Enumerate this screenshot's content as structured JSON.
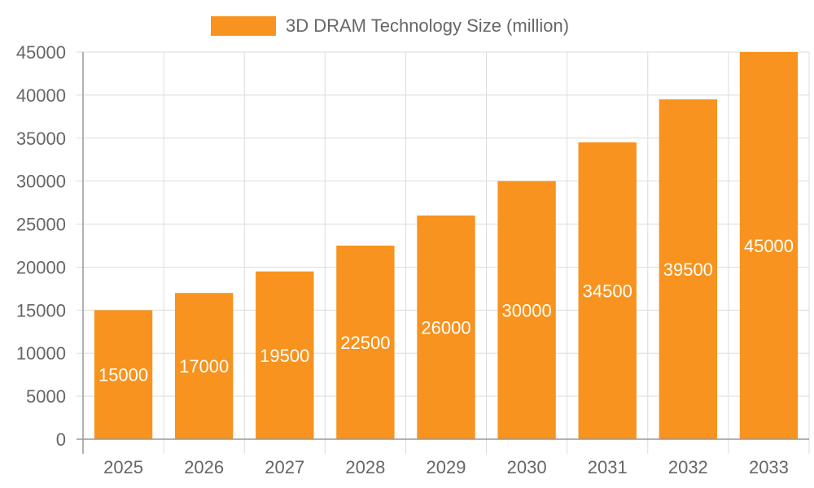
{
  "chart_data": {
    "type": "bar",
    "categories": [
      "2025",
      "2026",
      "2027",
      "2028",
      "2029",
      "2030",
      "2031",
      "2032",
      "2033"
    ],
    "series": [
      {
        "name": "3D DRAM Technology Size (million)",
        "values": [
          15000,
          17000,
          19500,
          22500,
          26000,
          30000,
          34500,
          39500,
          45000
        ],
        "color": "#f7931e"
      }
    ],
    "yticks": [
      "0",
      "5000",
      "10000",
      "15000",
      "20000",
      "25000",
      "30000",
      "35000",
      "40000",
      "45000"
    ],
    "ylim": [
      0,
      45000
    ],
    "grid": true,
    "legend_position": "top",
    "data_labels": true
  }
}
